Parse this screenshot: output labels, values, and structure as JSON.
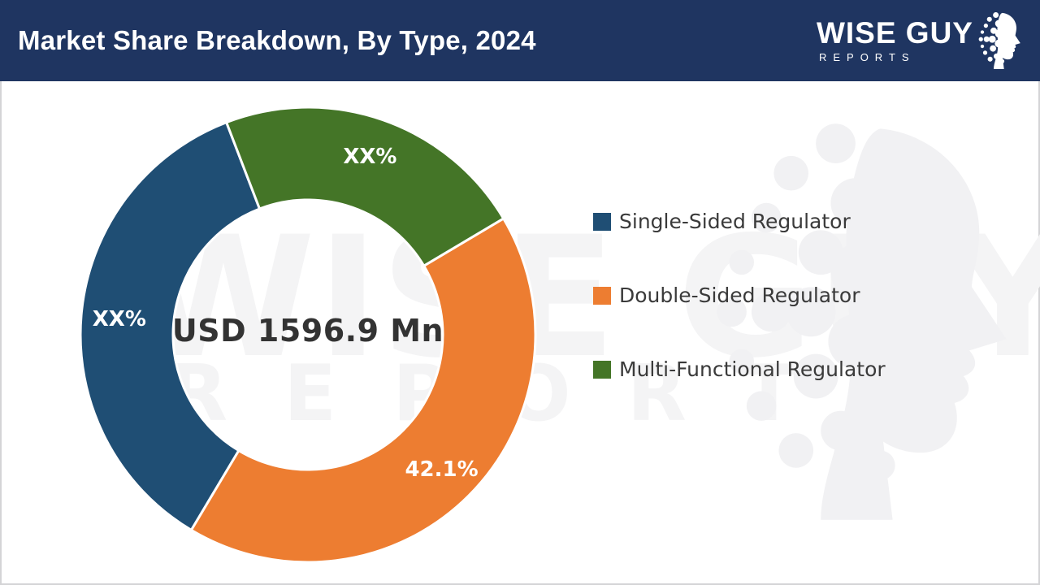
{
  "header": {
    "title": "Market Share Breakdown, By Type, 2024",
    "logo": {
      "wordmark": "WISE GUY",
      "subtitle": "REPORTS"
    }
  },
  "colors": {
    "header_bg": "#1f3561",
    "border": "#d4d4d6",
    "center_text": "#333333",
    "slice_label_text": "#ffffff"
  },
  "chart_data": {
    "type": "pie",
    "subtype": "donut",
    "title": "Market Share Breakdown, By Type, 2024",
    "center_label": "USD 1596.9 Mn",
    "start_angle_deg": 111,
    "direction": "counterclockwise",
    "legend_position": "right",
    "series": [
      {
        "name": "Single-Sided Regulator",
        "pct": 35.6,
        "slice_label": "XX%",
        "color": "#1f4e74"
      },
      {
        "name": "Double-Sided Regulator",
        "pct": 42.1,
        "slice_label": "42.1%",
        "color": "#ed7d31"
      },
      {
        "name": "Multi-Functional Regulator",
        "pct": 22.3,
        "slice_label": "XX%",
        "color": "#447527"
      }
    ]
  },
  "watermark": {
    "line1": "WISE GUY",
    "line2": "R E P O R T S"
  }
}
